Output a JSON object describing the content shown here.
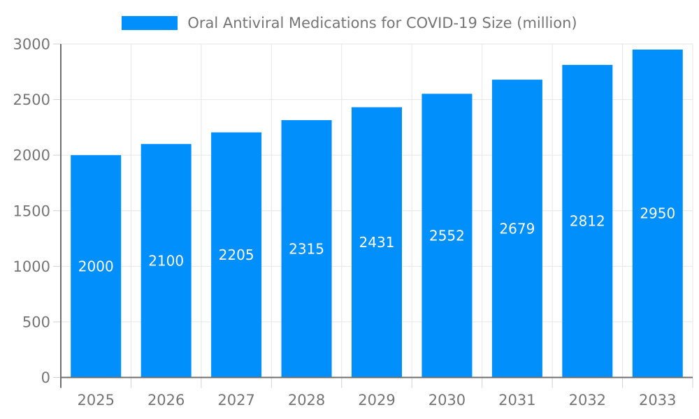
{
  "chart_data": {
    "type": "bar",
    "title": "Oral Antiviral Medications for COVID-19 Size (million)",
    "categories": [
      "2025",
      "2026",
      "2027",
      "2028",
      "2029",
      "2030",
      "2031",
      "2032",
      "2033"
    ],
    "values": [
      2000,
      2100,
      2205,
      2315,
      2431,
      2552,
      2679,
      2812,
      2950
    ],
    "bar_value_labels": [
      "2000",
      "2100",
      "2205",
      "2315",
      "2431",
      "2552",
      "2679",
      "2812",
      "2950"
    ],
    "xlabel": "",
    "ylabel": "",
    "ylim": [
      0,
      3000
    ],
    "yticks": [
      0,
      500,
      1000,
      1500,
      2000,
      2500,
      3000
    ],
    "grid": true,
    "legend_position": "top",
    "colors": {
      "bar": "#008ffb",
      "bar_label": "#ffffff",
      "axis_text": "#757575",
      "grid": "#e6e6e6",
      "tick": "#d2d2d2",
      "axis_line": "#6f6f6f",
      "background": "#ffffff"
    }
  }
}
